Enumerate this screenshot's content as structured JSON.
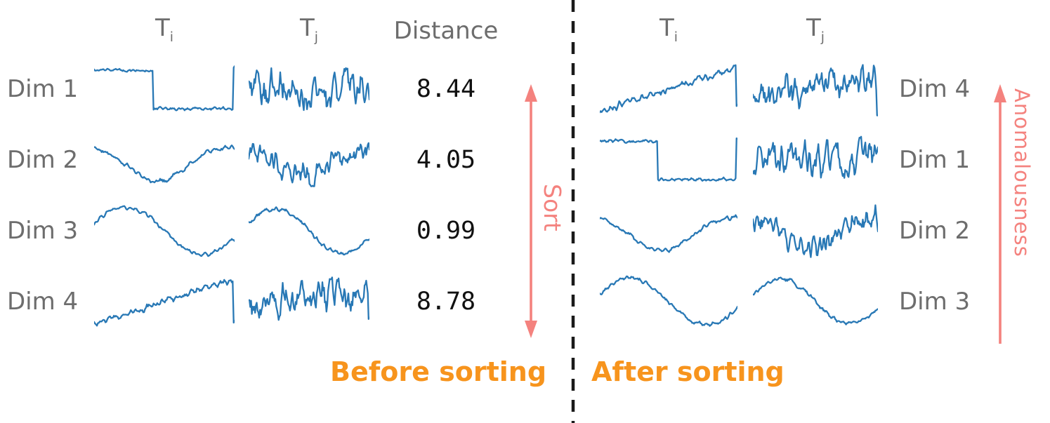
{
  "colors": {
    "line_blue": "#2878b5",
    "accent_pink": "#f4827e",
    "accent_orange": "#f7941d",
    "label_gray": "#6d6d6d",
    "number_black": "#111111",
    "divider_black": "#1a1a1a",
    "background": "#ffffff"
  },
  "left_panel": {
    "caption": "Before sorting",
    "sort_label": "Sort",
    "columns": {
      "ti": {
        "base": "T",
        "sub": "i"
      },
      "tj": {
        "base": "T",
        "sub": "j"
      },
      "distance": "Distance"
    },
    "rows": [
      {
        "dim": "Dim 1",
        "ti_wave": "step",
        "tj_wave": "noise",
        "distance": "8.44"
      },
      {
        "dim": "Dim 2",
        "ti_wave": "valley",
        "tj_wave": "noisy-valley",
        "distance": "4.05"
      },
      {
        "dim": "Dim 3",
        "ti_wave": "sine",
        "tj_wave": "sine",
        "distance": "0.99"
      },
      {
        "dim": "Dim 4",
        "ti_wave": "ramp",
        "tj_wave": "noisy-rise",
        "distance": "8.78"
      }
    ]
  },
  "right_panel": {
    "caption": "After sorting",
    "anomalousness_label": "Anomalousness",
    "columns": {
      "ti": {
        "base": "T",
        "sub": "i"
      },
      "tj": {
        "base": "T",
        "sub": "j"
      }
    },
    "rows": [
      {
        "dim": "Dim 4",
        "ti_wave": "ramp",
        "tj_wave": "noisy-rise"
      },
      {
        "dim": "Dim 1",
        "ti_wave": "step",
        "tj_wave": "noise"
      },
      {
        "dim": "Dim 2",
        "ti_wave": "valley",
        "tj_wave": "noisy-valley"
      },
      {
        "dim": "Dim 3",
        "ti_wave": "sine",
        "tj_wave": "sine"
      }
    ]
  }
}
